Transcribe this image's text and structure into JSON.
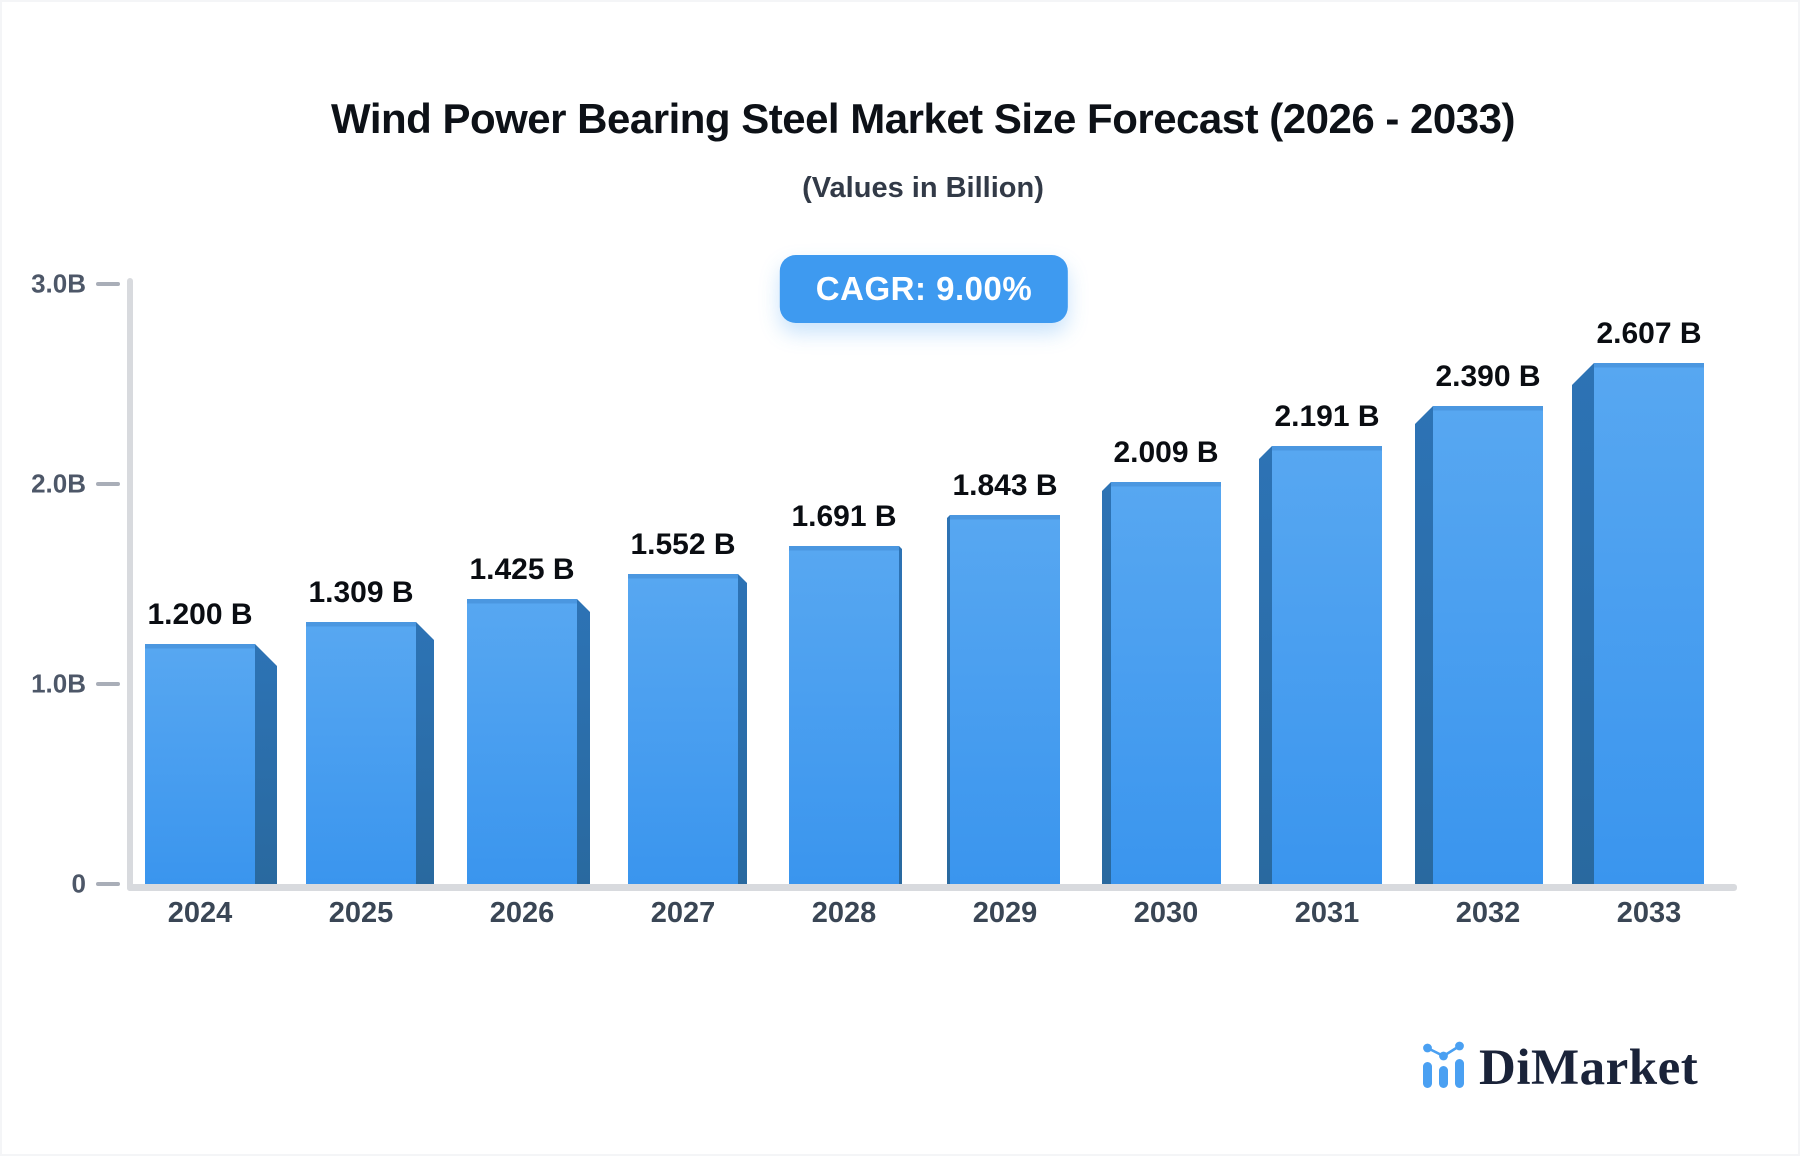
{
  "header": {
    "title": "Wind Power Bearing Steel Market Size Forecast (2026 - 2033)",
    "subtitle": "(Values in Billion)",
    "cagr_badge": "CAGR: 9.00%"
  },
  "chart_data": {
    "type": "bar",
    "title": "Wind Power Bearing Steel Market Size Forecast (2026 - 2033)",
    "subtitle": "(Values in Billion)",
    "cagr": "9.00%",
    "categories": [
      "2024",
      "2025",
      "2026",
      "2027",
      "2028",
      "2029",
      "2030",
      "2031",
      "2032",
      "2033"
    ],
    "values": [
      1.2,
      1.309,
      1.425,
      1.552,
      1.691,
      1.843,
      2.009,
      2.191,
      2.39,
      2.607
    ],
    "display_values": [
      "1.200 B",
      "1.309 B",
      "1.425 B",
      "1.552 B",
      "1.691 B",
      "1.843 B",
      "2.009 B",
      "2.191 B",
      "2.390 B",
      "2.607 B"
    ],
    "unit": "Billion",
    "xlabel": "",
    "ylabel": "",
    "ylim": [
      0,
      3.0
    ],
    "y_ticks": [
      {
        "value": 3.0,
        "label": "3.0B"
      },
      {
        "value": 2.0,
        "label": "2.0B"
      },
      {
        "value": 1.0,
        "label": "1.0B"
      },
      {
        "value": 0.0,
        "label": "0"
      }
    ],
    "grid": false,
    "legend": false,
    "bar_color": "#3A95EE",
    "bar_side_color": "#2D73B5",
    "badge_color": "#3E9AF0"
  },
  "branding": {
    "logo_text": "DiMarket",
    "logo_icon": "mini-bar-line-chart-icon",
    "logo_color": "#4AA0F2"
  }
}
